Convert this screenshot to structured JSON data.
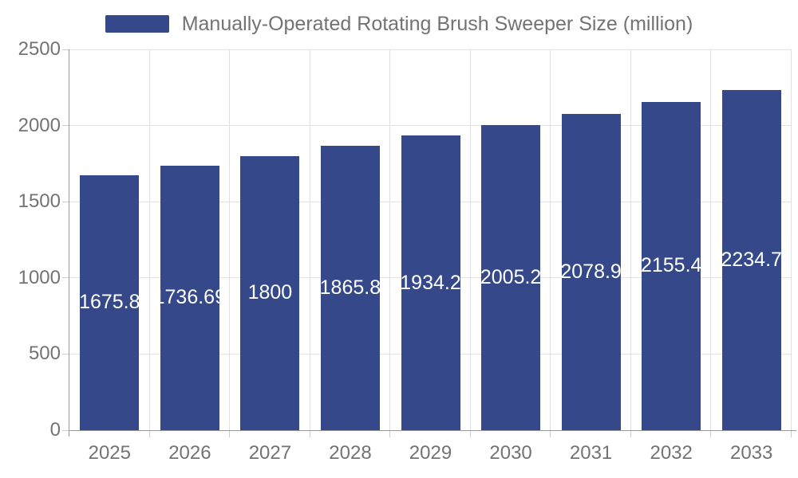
{
  "legend": {
    "swatch_color": "#35498A"
  },
  "chart_data": {
    "type": "bar",
    "title": "Manually-Operated Rotating Brush Sweeper Size (million)",
    "categories": [
      "2025",
      "2026",
      "2027",
      "2028",
      "2029",
      "2030",
      "2031",
      "2032",
      "2033"
    ],
    "values": [
      1675.8,
      1736.69,
      1800,
      1865.8,
      1934.2,
      2005.2,
      2078.9,
      2155.4,
      2234.7
    ],
    "value_labels": [
      "1675.8",
      "1736.69",
      "1800",
      "1865.8",
      "1934.2",
      "2005.2",
      "2078.9",
      "2155.4",
      "2234.7"
    ],
    "xlabel": "",
    "ylabel": "",
    "ylim": [
      0,
      2500
    ],
    "y_ticks": [
      0,
      500,
      1000,
      1500,
      2000,
      2500
    ],
    "grid": true,
    "legend_position": "top-center",
    "colors": {
      "bar_fill": "#35498A",
      "bar_label_text": "#FFFFFF",
      "gridline": "#E2E2E2",
      "axis_line": "#999999",
      "tick_mark": "#CCCCCC",
      "axis_text": "#737373",
      "background": "#FFFFFF"
    }
  }
}
